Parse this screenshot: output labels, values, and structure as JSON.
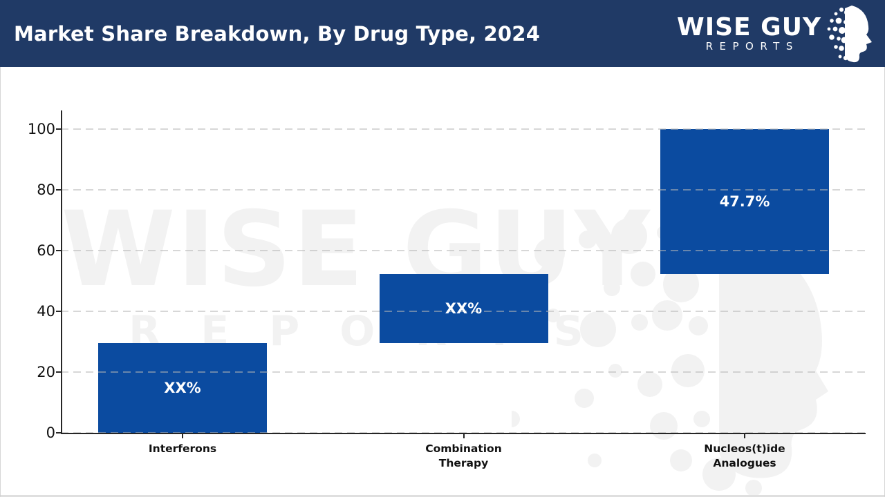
{
  "header": {
    "title": "Market Share Breakdown, By Drug Type, 2024",
    "bg_color": "#203a66",
    "logo": {
      "line1": "WISE GUY",
      "line2": "REPORTS"
    }
  },
  "watermark": {
    "line1": "WISE GUY",
    "line2": "REPORTS"
  },
  "chart_data": {
    "type": "bar",
    "subtype": "floating-waterfall",
    "title": "Market Share Breakdown, By Drug Type, 2024",
    "xlabel": "",
    "ylabel": "",
    "categories": [
      "Interferons",
      "Combination Therapy",
      "Nucleos(t)ide Analogues"
    ],
    "values": [
      29.5,
      22.8,
      47.7
    ],
    "bars": [
      {
        "category_lines": [
          "Interferons"
        ],
        "start": 0,
        "end": 29.5,
        "value_label": "XX%"
      },
      {
        "category_lines": [
          "Combination",
          "Therapy"
        ],
        "start": 29.5,
        "end": 52.3,
        "value_label": "XX%"
      },
      {
        "category_lines": [
          "Nucleos(t)ide",
          "Analogues"
        ],
        "start": 52.3,
        "end": 100,
        "value_label": "47.7%"
      }
    ],
    "yticks": [
      0,
      20,
      40,
      60,
      80,
      100
    ],
    "ylim": [
      0,
      106
    ],
    "grid": "dashed-horizontal",
    "legend": "none",
    "bar_color": "#0b4ba0",
    "axis_color": "#262626",
    "grid_color": "#dcdcdc",
    "label_color": "#ffffff"
  }
}
